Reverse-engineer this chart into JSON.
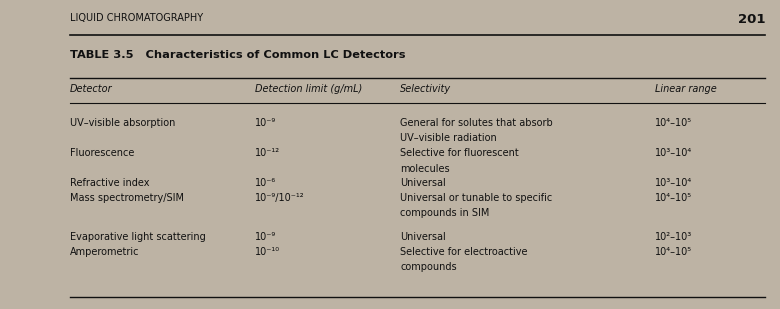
{
  "header_text": "LIQUID CHROMATOGRAPHY",
  "page_number": "201",
  "table_title": "TABLE 3.5   Characteristics of Common LC Detectors",
  "columns": [
    "Detector",
    "Detection limit (g/mL)",
    "Selectivity",
    "Linear range"
  ],
  "rows": [
    {
      "detector": "UV–visible absorption",
      "detection_limit": "10⁻⁹",
      "selectivity_lines": [
        "General for solutes that absorb",
        "UV–visible radiation"
      ],
      "linear_range": "10⁴–10⁵"
    },
    {
      "detector": "Fluorescence",
      "detection_limit": "10⁻¹²",
      "selectivity_lines": [
        "Selective for fluorescent",
        "molecules"
      ],
      "linear_range": "10³–10⁴"
    },
    {
      "detector": "Refractive index",
      "detection_limit": "10⁻⁶",
      "selectivity_lines": [
        "Universal"
      ],
      "linear_range": "10³–10⁴"
    },
    {
      "detector": "Mass spectrometry/SIM",
      "detection_limit": "10⁻⁹/10⁻¹²",
      "selectivity_lines": [
        "Universal or tunable to specific",
        "compounds in SIM"
      ],
      "linear_range": "10⁴–10⁵"
    },
    {
      "detector": "Evaporative light scattering",
      "detection_limit": "10⁻⁹",
      "selectivity_lines": [
        "Universal"
      ],
      "linear_range": "10²–10³"
    },
    {
      "detector": "Amperometric",
      "detection_limit": "10⁻¹⁰",
      "selectivity_lines": [
        "Selective for electroactive",
        "compounds"
      ],
      "linear_range": "10⁴–10⁵"
    }
  ],
  "bg_color": "#bdb3a4",
  "text_color": "#111111",
  "line_color": "#111111",
  "header_fontsize": 7.0,
  "title_fontsize": 8.2,
  "body_fontsize": 7.0,
  "col_header_fontsize": 7.0,
  "page_fontsize": 9.5
}
